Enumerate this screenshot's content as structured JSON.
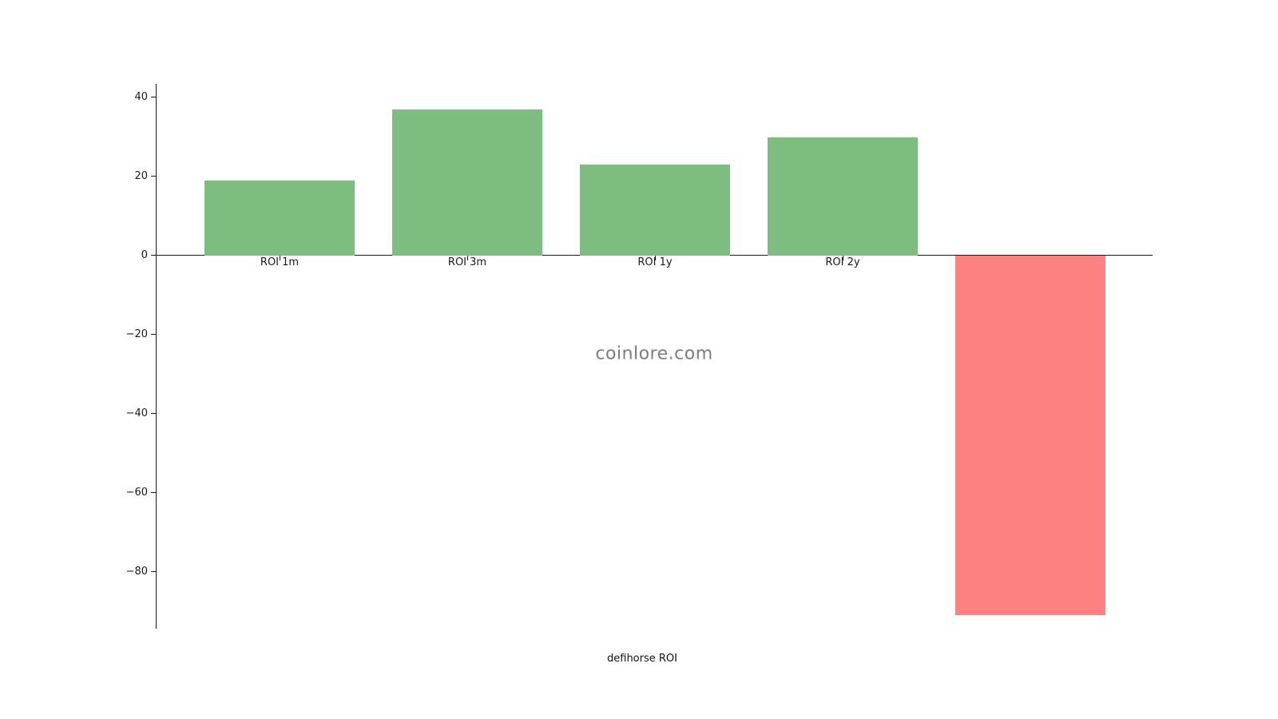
{
  "chart_data": {
    "type": "bar",
    "title": "",
    "xlabel": "defihorse ROI",
    "ylabel": "",
    "categories": [
      "ROI 1m",
      "ROI 3m",
      "ROI 1y",
      "ROI 2y",
      ""
    ],
    "values": [
      19,
      37,
      23,
      30,
      -91
    ],
    "yticks": [
      {
        "value": 40,
        "label": "40"
      },
      {
        "value": 20,
        "label": "20"
      },
      {
        "value": 0,
        "label": "0"
      },
      {
        "value": -20,
        "label": "−20"
      },
      {
        "value": -40,
        "label": "−40"
      },
      {
        "value": -60,
        "label": "−60"
      },
      {
        "value": -80,
        "label": "−80"
      }
    ],
    "ylim": [
      -94,
      43
    ],
    "grid": false,
    "legend": null,
    "watermark": "coinlore.com",
    "colors": {
      "positive": "#7dbe80",
      "negative": "#fd8181",
      "axis": "#1a1a1a",
      "watermark_text": "#7c7c7c"
    }
  }
}
